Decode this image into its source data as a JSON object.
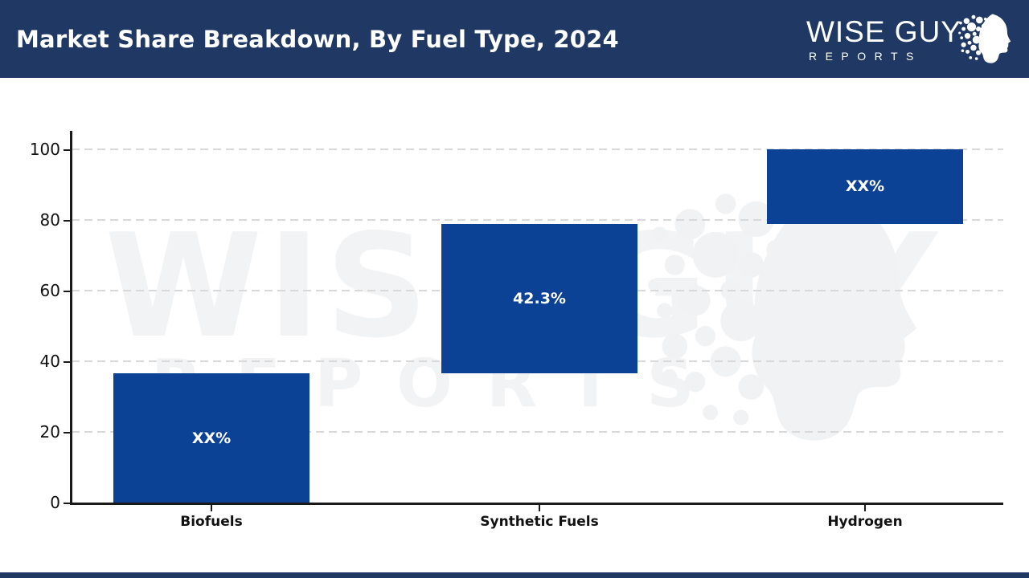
{
  "header": {
    "title": "Market Share Breakdown, By Fuel Type, 2024",
    "logo": {
      "line1": "WISE GUY",
      "line2": "REPORTS"
    }
  },
  "watermark": {
    "line1": "WISE GUY",
    "line2": "REPORTS"
  },
  "chart_data": {
    "type": "bar",
    "subtype": "waterfall",
    "title": "Market Share Breakdown, By Fuel Type, 2024",
    "xlabel": "",
    "ylabel": "",
    "categories": [
      "Biofuels",
      "Synthetic Fuels",
      "Hydrogen"
    ],
    "segments": [
      {
        "category": "Biofuels",
        "start": 0,
        "end": 36.5,
        "label": "XX%"
      },
      {
        "category": "Synthetic Fuels",
        "start": 36.5,
        "end": 78.8,
        "label": "42.3%"
      },
      {
        "category": "Hydrogen",
        "start": 78.8,
        "end": 100,
        "label": "XX%"
      }
    ],
    "yticks": [
      0,
      20,
      40,
      60,
      80,
      100
    ],
    "ylim": [
      0,
      105
    ],
    "grid": "horizontal-dashed",
    "legend": "none"
  },
  "colors": {
    "header_bg": "#1f3864",
    "bar": "#0b4295",
    "bar_label": "#ffffff",
    "grid": "#d9d9d9",
    "axis": "#1a1a1a",
    "watermark": "#f2f3f5"
  }
}
